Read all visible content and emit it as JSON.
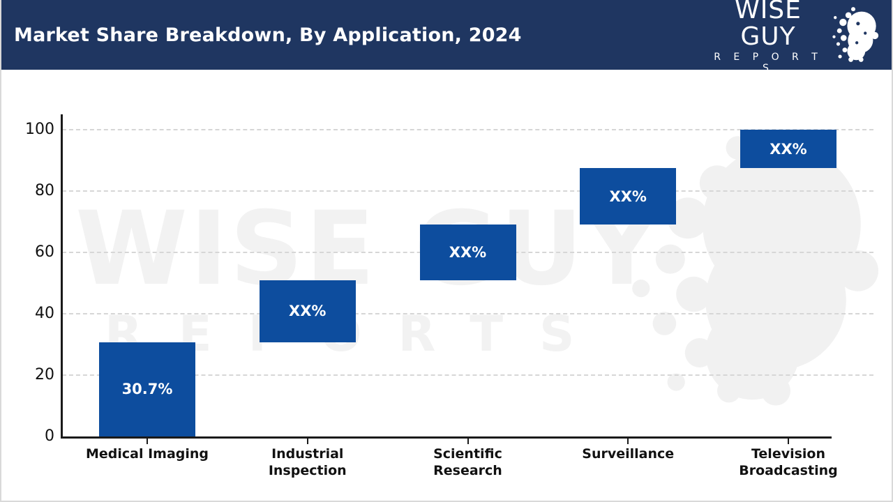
{
  "header": {
    "title": "Market Share Breakdown, By Application, 2024",
    "bg_color": "#1f3661",
    "logo": {
      "line1": "WISE GUY",
      "line2": "R E P O R T S"
    }
  },
  "watermark": {
    "line1": "WISE GUY",
    "line2": "REPORTS"
  },
  "chart_data": {
    "type": "bar",
    "subtype": "waterfall",
    "title": "Market Share Breakdown, By Application, 2024",
    "categories": [
      "Medical Imaging",
      "Industrial Inspection",
      "Scientific Research",
      "Surveillance",
      "Television Broadcasting"
    ],
    "bars": [
      {
        "category": "Medical Imaging",
        "label_lines": "Medical Imaging",
        "start": 0,
        "end": 30.7,
        "label": "30.7%"
      },
      {
        "category": "Industrial Inspection",
        "label_lines": "Industrial\nInspection",
        "start": 30.7,
        "end": 51,
        "label": "XX%"
      },
      {
        "category": "Scientific Research",
        "label_lines": "Scientific\nResearch",
        "start": 51,
        "end": 69,
        "label": "XX%"
      },
      {
        "category": "Surveillance",
        "label_lines": "Surveillance",
        "start": 69,
        "end": 87.5,
        "label": "XX%"
      },
      {
        "category": "Television Broadcasting",
        "label_lines": "Television\nBroadcasting",
        "start": 87.5,
        "end": 100,
        "label": "XX%"
      }
    ],
    "ylim": [
      0,
      100
    ],
    "yticks": [
      0,
      20,
      40,
      60,
      80,
      100
    ],
    "xlabel": "",
    "ylabel": "",
    "grid": "horizontal-dashed",
    "legend": "none",
    "bar_color": "#0d4d9e",
    "bar_label_color": "#ffffff",
    "gridline_color": "#d6d6d6",
    "axis_color": "#1a1a1a"
  }
}
